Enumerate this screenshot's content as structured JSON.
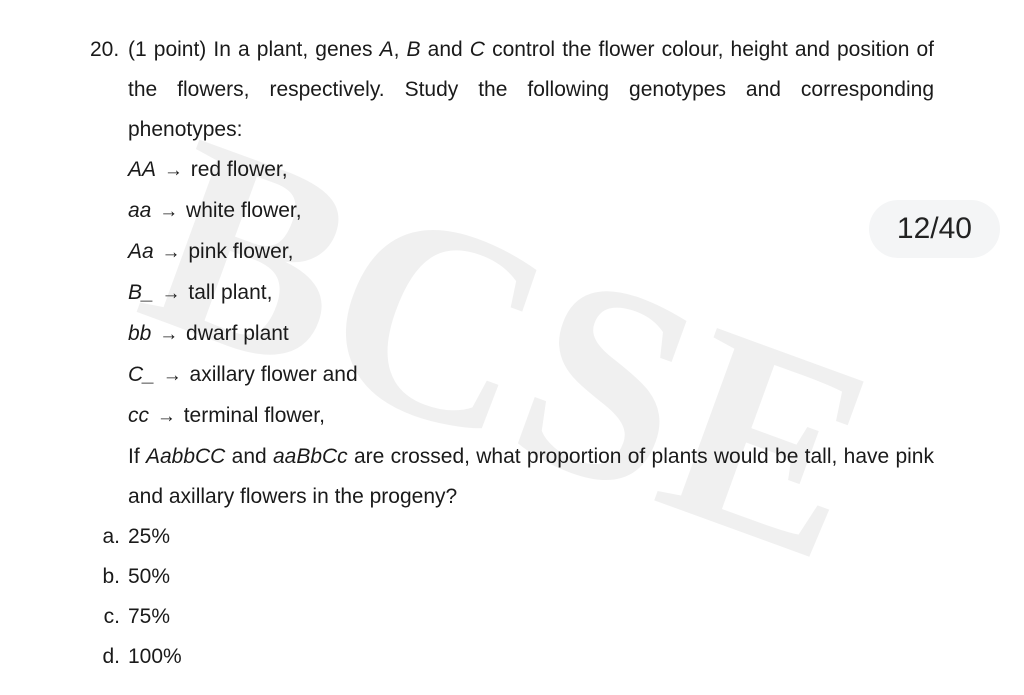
{
  "watermark": "BCSE",
  "badge": "12/40",
  "question": {
    "number": "20.",
    "points_prefix": "(1 point)",
    "stem_1": "In a plant, genes ",
    "gene_A": "A",
    "comma1": ", ",
    "gene_B": "B",
    "and1": " and ",
    "gene_C": "C",
    "stem_2": " control the flower colour, height and position of the flowers, respectively. Study the following genotypes and corresponding phenotypes:",
    "map": [
      {
        "geno": "AA",
        "pheno": "red flower,"
      },
      {
        "geno": "aa",
        "pheno": "white flower,"
      },
      {
        "geno": "Aa",
        "pheno": "pink flower,"
      },
      {
        "geno": "B_",
        "pheno": "tall plant,"
      },
      {
        "geno": "bb",
        "pheno": "dwarf plant"
      },
      {
        "geno": "C_",
        "pheno": "axillary flower and"
      },
      {
        "geno": "cc",
        "pheno": "terminal flower,"
      }
    ],
    "cross": {
      "pre": "If ",
      "p1": "AabbCC",
      "mid": " and ",
      "p2": "aaBbCc",
      "post": " are crossed, what proportion of plants would be tall, have pink and axillary flowers in the progeny?"
    },
    "options": [
      {
        "letter": "a.",
        "text": "25%"
      },
      {
        "letter": "b.",
        "text": "50%"
      },
      {
        "letter": "c.",
        "text": "75%"
      },
      {
        "letter": "d.",
        "text": "100%"
      }
    ]
  },
  "arrow_glyph": "→"
}
